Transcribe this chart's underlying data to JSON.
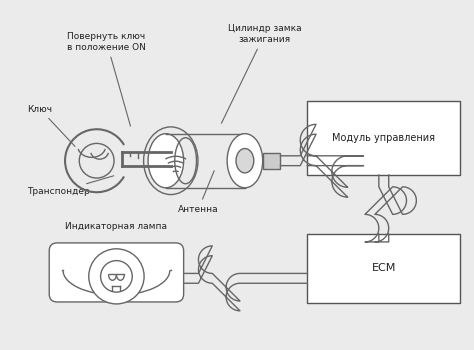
{
  "bg_color": "#ebebeb",
  "line_color": "#666666",
  "box_line_color": "#555555",
  "text_color": "#222222",
  "labels": {
    "cylinder": "Цилиндр замка\nзажигания",
    "turn_key": "Повернуть ключ\nв положение ON",
    "key": "Ключ",
    "transponder": "Транспондер",
    "antenna": "Антенна",
    "control_module": "Модуль управления",
    "indicator_lamp": "Индикаторная лампа",
    "ecm": "ECM"
  },
  "figsize": [
    4.74,
    3.5
  ],
  "dpi": 100
}
